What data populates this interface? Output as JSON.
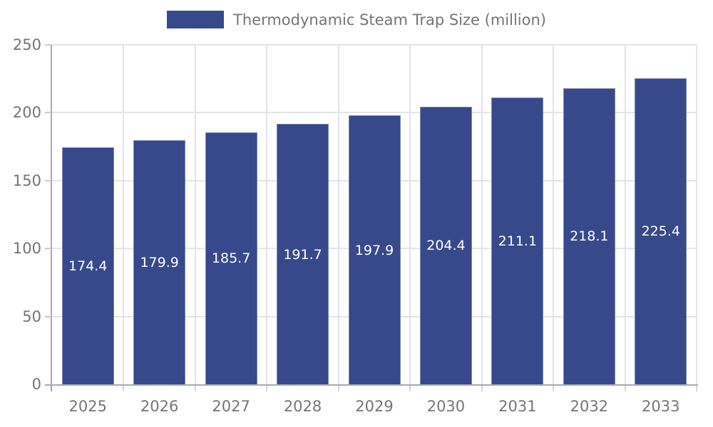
{
  "chart_data": {
    "type": "bar",
    "title": "Thermodynamic Steam Trap Size (million)",
    "categories": [
      "2025",
      "2026",
      "2027",
      "2028",
      "2029",
      "2030",
      "2031",
      "2032",
      "2033"
    ],
    "values": [
      174.4,
      179.9,
      185.7,
      191.7,
      197.9,
      204.4,
      211.1,
      218.1,
      225.4
    ],
    "xlabel": "",
    "ylabel": "",
    "ylim": [
      0,
      250
    ],
    "yticks": [
      0,
      50,
      100,
      150,
      200,
      250
    ],
    "grid": "both",
    "legend_position": "top-center",
    "value_labels_inside_bars": true
  },
  "colors": {
    "bar": "#37498a",
    "value_text": "#ffffff",
    "tick_text": "#757575",
    "legend_text": "#757575",
    "grid": "#e4e4e8",
    "axis": "#a9a9b3",
    "background": "#ffffff"
  }
}
